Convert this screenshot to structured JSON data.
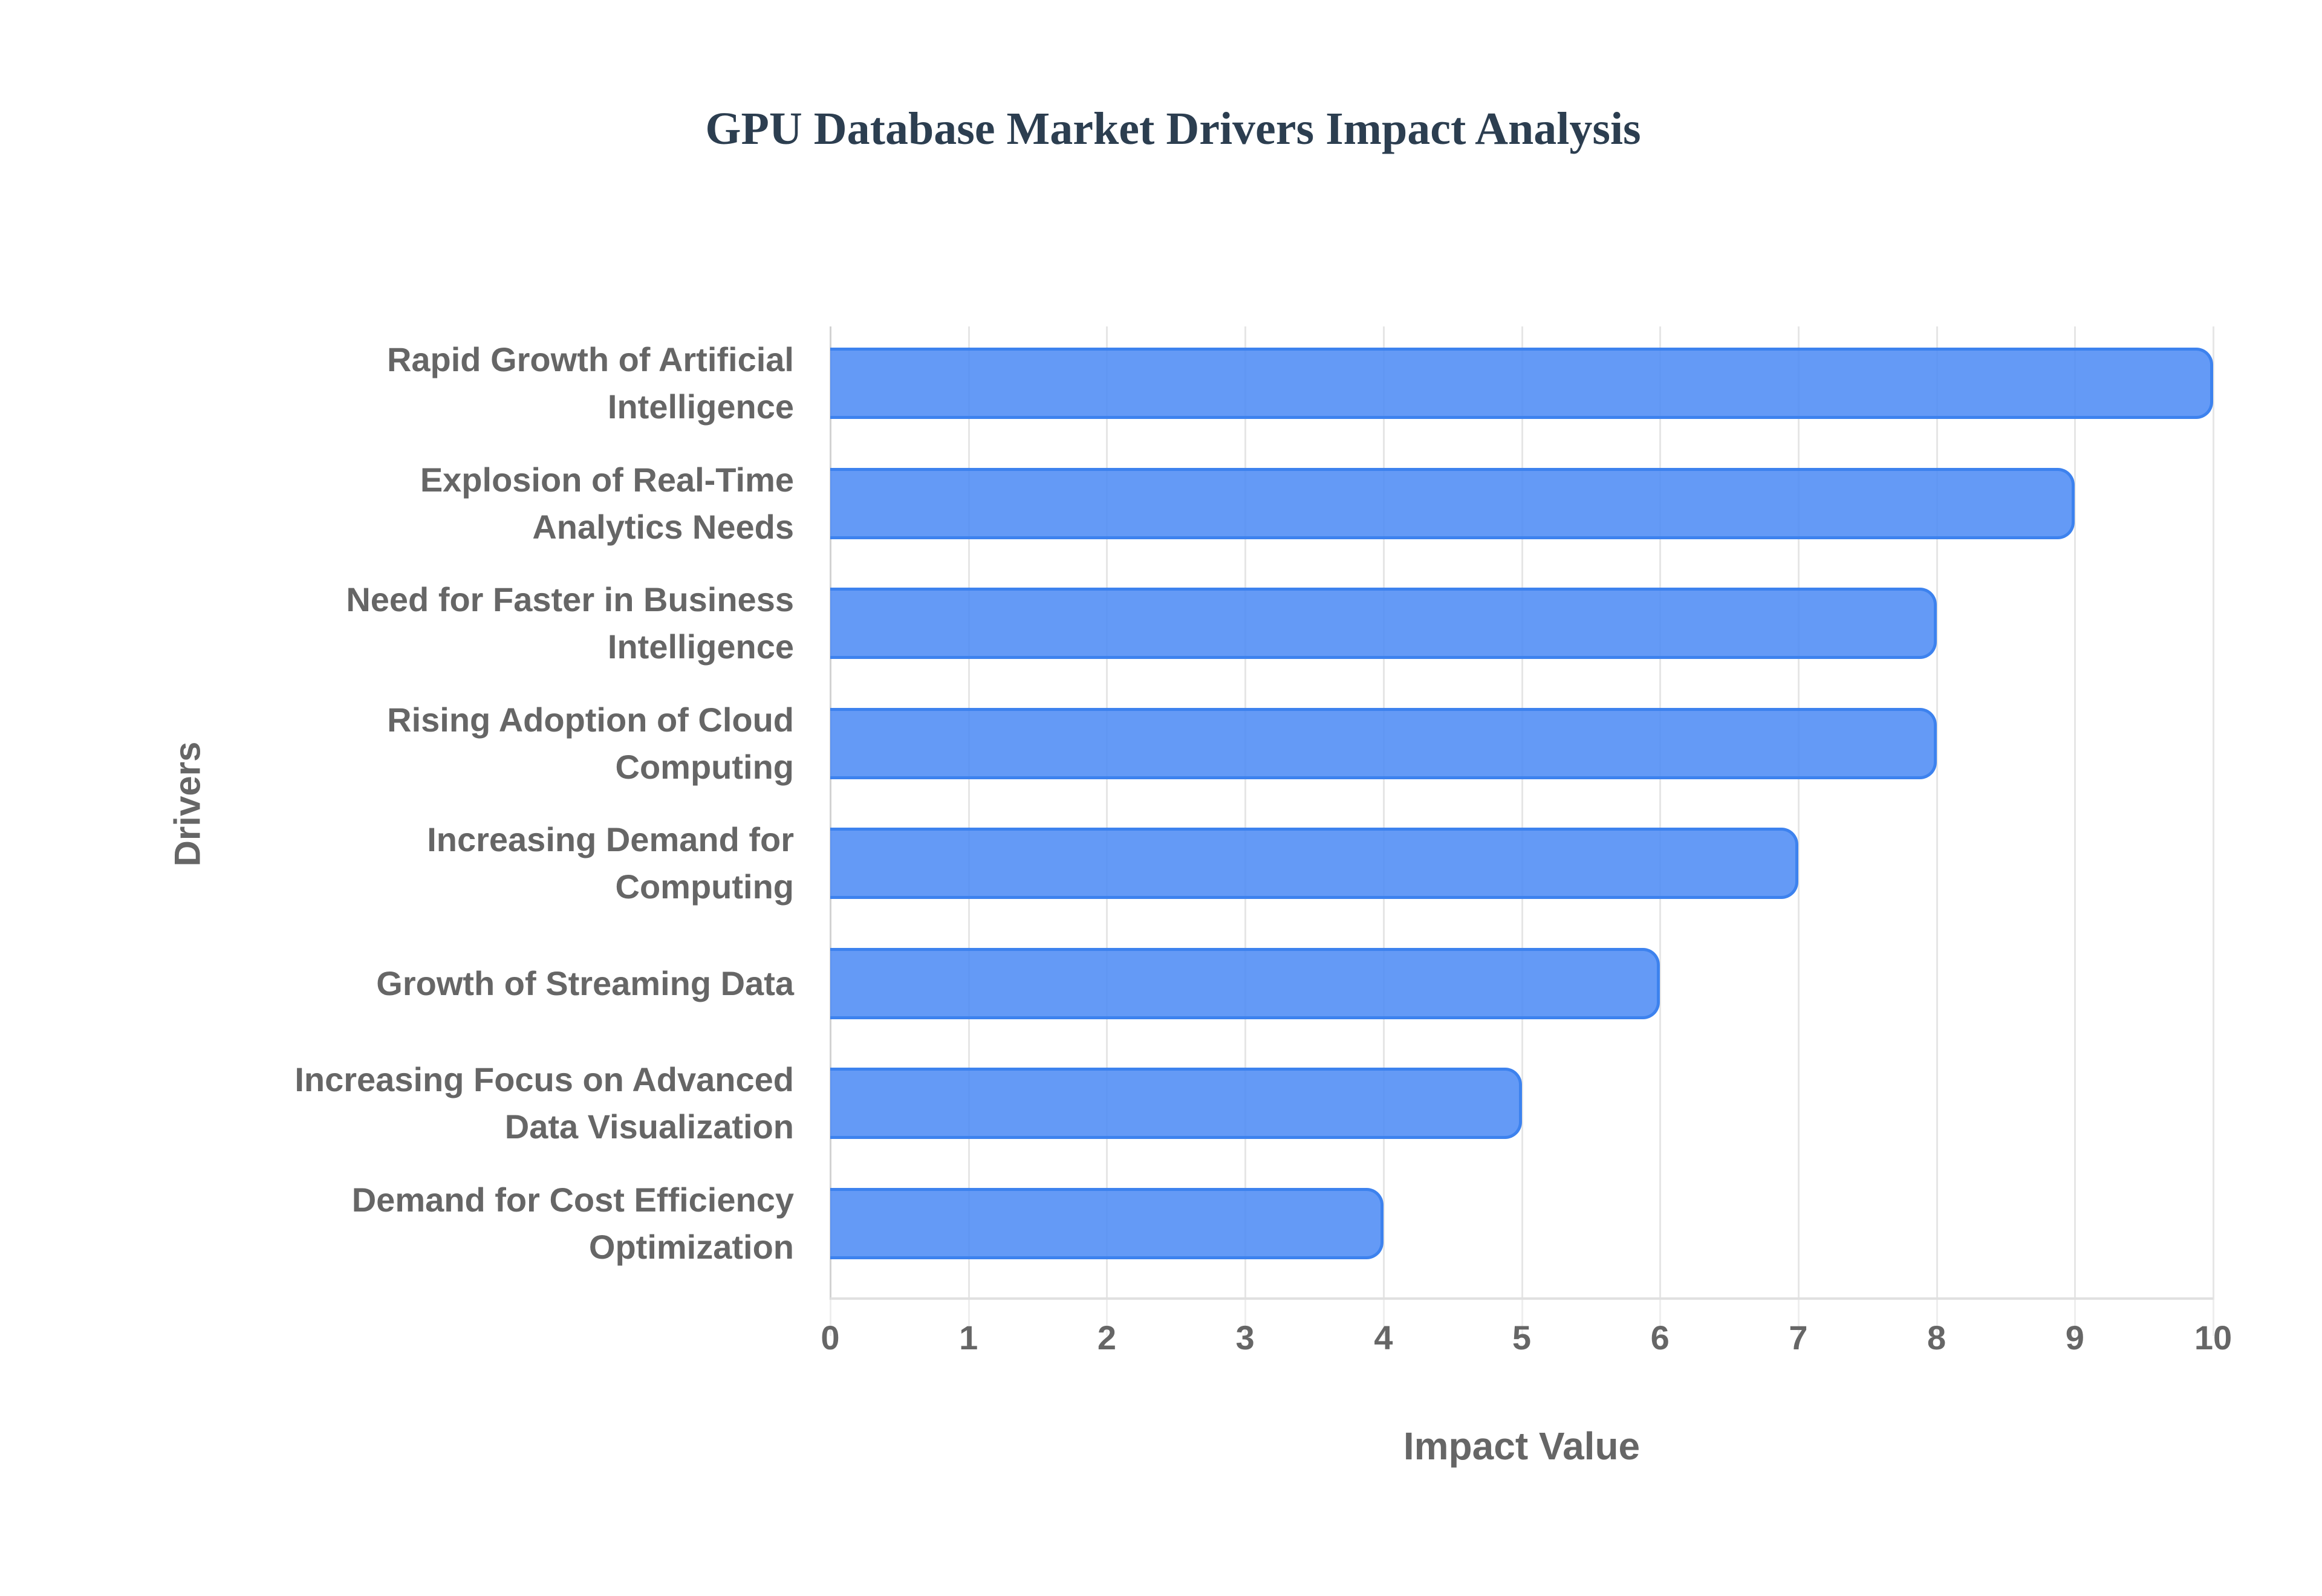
{
  "chart_data": {
    "type": "bar",
    "orientation": "horizontal",
    "title": "GPU Database Market Drivers Impact Analysis",
    "xlabel": "Impact Value",
    "ylabel": "Drivers",
    "categories": [
      "Rapid Growth of Artificial Intelligence",
      "Explosion of Real-Time Analytics Needs",
      "Need for Faster in Business Intelligence",
      "Rising Adoption of Cloud Computing",
      "Increasing Demand for Computing",
      "Growth of Streaming Data",
      "Increasing Focus on Advanced Data Visualization",
      "Demand for Cost Efficiency Optimization"
    ],
    "values": [
      10,
      9,
      8,
      8,
      7,
      6,
      5,
      4
    ],
    "xlim": [
      0,
      10
    ],
    "x_ticks": [
      "0",
      "1",
      "2",
      "3",
      "4",
      "5",
      "6",
      "7",
      "8",
      "9",
      "10"
    ],
    "grid": true,
    "legend": "none",
    "colors": {
      "bar_fill": "#4a89f4",
      "bar_border": "#3d82ee",
      "title": "#2c3e50",
      "axis_text": "#666666"
    }
  },
  "labels": {
    "cat0": {
      "line1": "Rapid Growth of Artificial",
      "line2": "Intelligence"
    },
    "cat1": {
      "line1": "Explosion of Real-Time",
      "line2": "Analytics Needs"
    },
    "cat2": {
      "line1": "Need for Faster in Business",
      "line2": "Intelligence"
    },
    "cat3": {
      "line1": "Rising Adoption of Cloud",
      "line2": "Computing"
    },
    "cat4": {
      "line1": "Increasing Demand for",
      "line2": "Computing"
    },
    "cat5": {
      "line1": "Growth of Streaming Data",
      "line2": ""
    },
    "cat6": {
      "line1": "Increasing Focus on Advanced",
      "line2": "Data Visualization"
    },
    "cat7": {
      "line1": "Demand for Cost Efficiency",
      "line2": "Optimization"
    }
  }
}
